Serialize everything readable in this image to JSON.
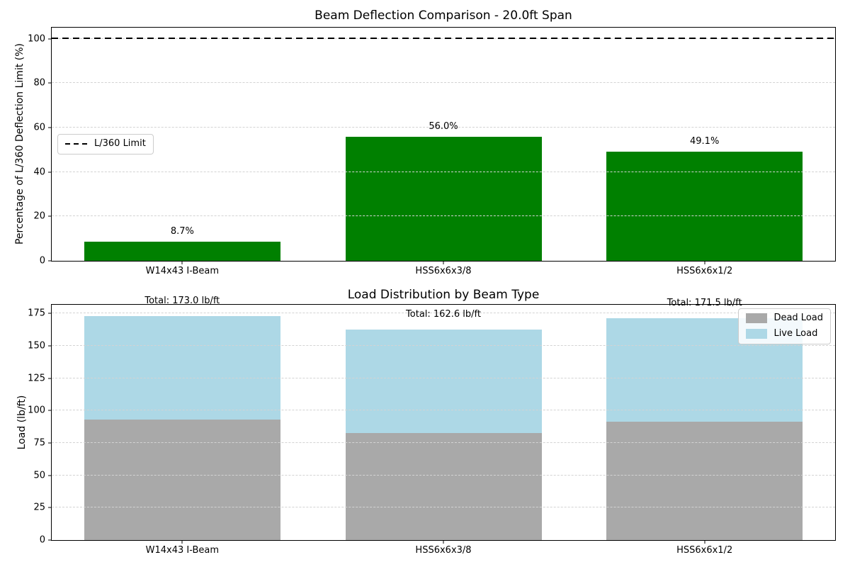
{
  "chart_data": [
    {
      "type": "bar",
      "title": "Beam Deflection Comparison - 20.0ft Span",
      "ylabel": "Percentage of L/360 Deflection Limit (%)",
      "categories": [
        "W14x43 I-Beam",
        "HSS6x6x3/8",
        "HSS6x6x1/2"
      ],
      "values": [
        8.7,
        56.0,
        49.1
      ],
      "bar_labels": [
        "8.7%",
        "56.0%",
        "49.1%"
      ],
      "bar_color": "#008000",
      "yticks": [
        0,
        20,
        40,
        60,
        80,
        100
      ],
      "ylim": [
        0,
        105
      ],
      "grid": {
        "axis": "y",
        "style": "dashed",
        "color": "#d3d3d3"
      },
      "reference_line": {
        "value": 100,
        "label": "L/360 Limit",
        "color": "#000000",
        "style": "dashed"
      },
      "legend_position": "center left"
    },
    {
      "type": "bar",
      "stacked": true,
      "title": "Load Distribution by Beam Type",
      "ylabel": "Load (lb/ft)",
      "categories": [
        "W14x43 I-Beam",
        "HSS6x6x3/8",
        "HSS6x6x1/2"
      ],
      "series": [
        {
          "name": "Dead Load",
          "color": "#a9a9a9",
          "values": [
            93.0,
            82.6,
            91.5
          ]
        },
        {
          "name": "Live Load",
          "color": "#add8e6",
          "values": [
            80.0,
            80.0,
            80.0
          ]
        }
      ],
      "totals": [
        173.0,
        162.6,
        171.5
      ],
      "total_labels": [
        "Total: 173.0 lb/ft",
        "Total: 162.6 lb/ft",
        "Total: 171.5 lb/ft"
      ],
      "yticks": [
        0,
        25,
        50,
        75,
        100,
        125,
        150,
        175
      ],
      "ylim": [
        0,
        181.7
      ],
      "grid": {
        "axis": "y",
        "style": "dashed",
        "color": "#d3d3d3"
      },
      "legend_position": "upper right"
    }
  ]
}
